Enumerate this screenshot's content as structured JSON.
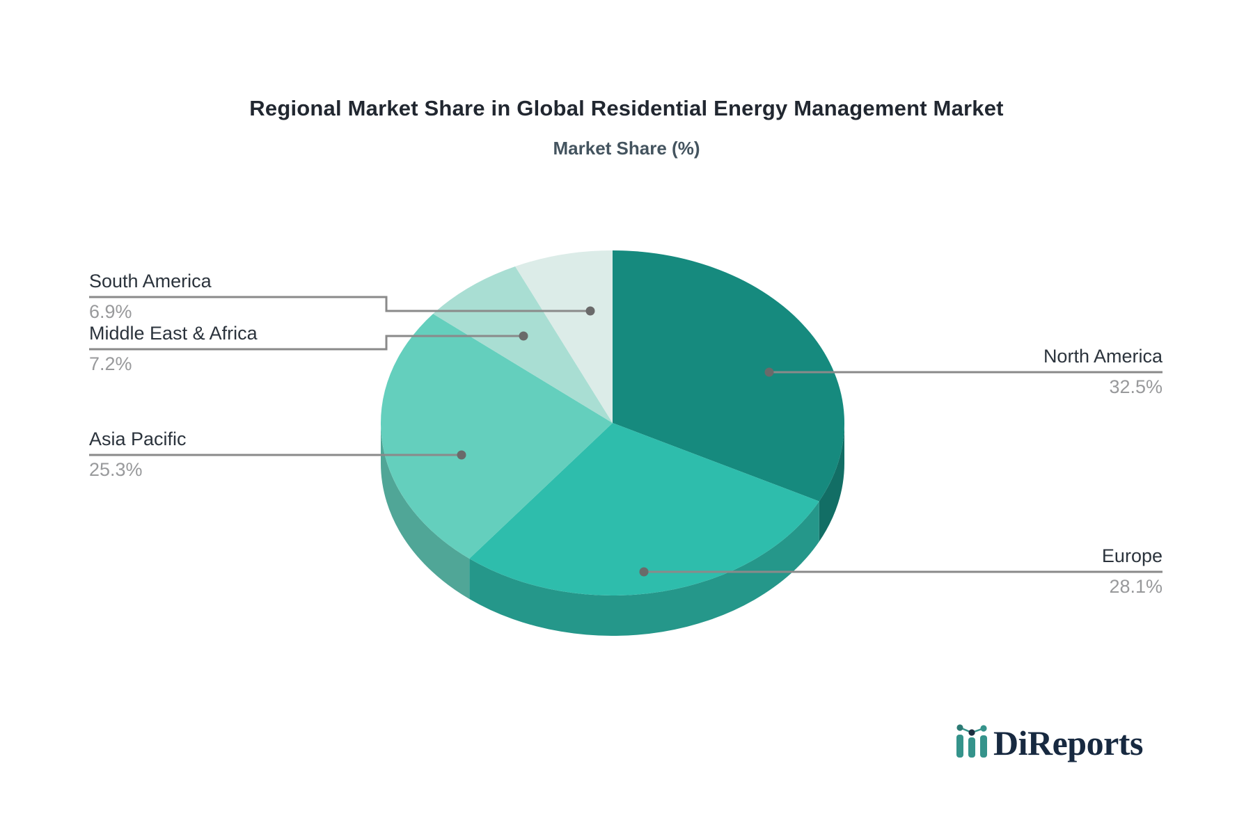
{
  "chart_data": {
    "type": "pie",
    "style": "3d",
    "title": "Regional Market Share in Global Residential Energy Management Market",
    "subtitle": "Market Share (%)",
    "unit": "%",
    "start_angle": "12-oclock",
    "direction": "clockwise",
    "slices": [
      {
        "label": "North America",
        "value": 32.5,
        "pct_label": "32.5%",
        "color": "#168a7e",
        "label_side": "right"
      },
      {
        "label": "Europe",
        "value": 28.1,
        "pct_label": "28.1%",
        "color": "#2ebdac",
        "label_side": "right"
      },
      {
        "label": "Asia Pacific",
        "value": 25.3,
        "pct_label": "25.3%",
        "color": "#64cfbd",
        "label_side": "left"
      },
      {
        "label": "Middle East & Africa",
        "value": 7.2,
        "pct_label": "7.2%",
        "color": "#a9ded3",
        "label_side": "left"
      },
      {
        "label": "South America",
        "value": 6.9,
        "pct_label": "6.9%",
        "color": "#dcece8",
        "label_side": "left"
      }
    ],
    "colors": {
      "leader_line": "#8a8a8a",
      "dot": "#6a6a6a",
      "label_text": "#2b333c",
      "pct_text": "#98999b",
      "title_text": "#212730",
      "subtitle_text": "#44545f"
    }
  },
  "branding": {
    "logo_text": "DiReports",
    "icon": "bar-line-chart-icon",
    "logo_color": "#172940",
    "logo_accent": "#35938b"
  }
}
